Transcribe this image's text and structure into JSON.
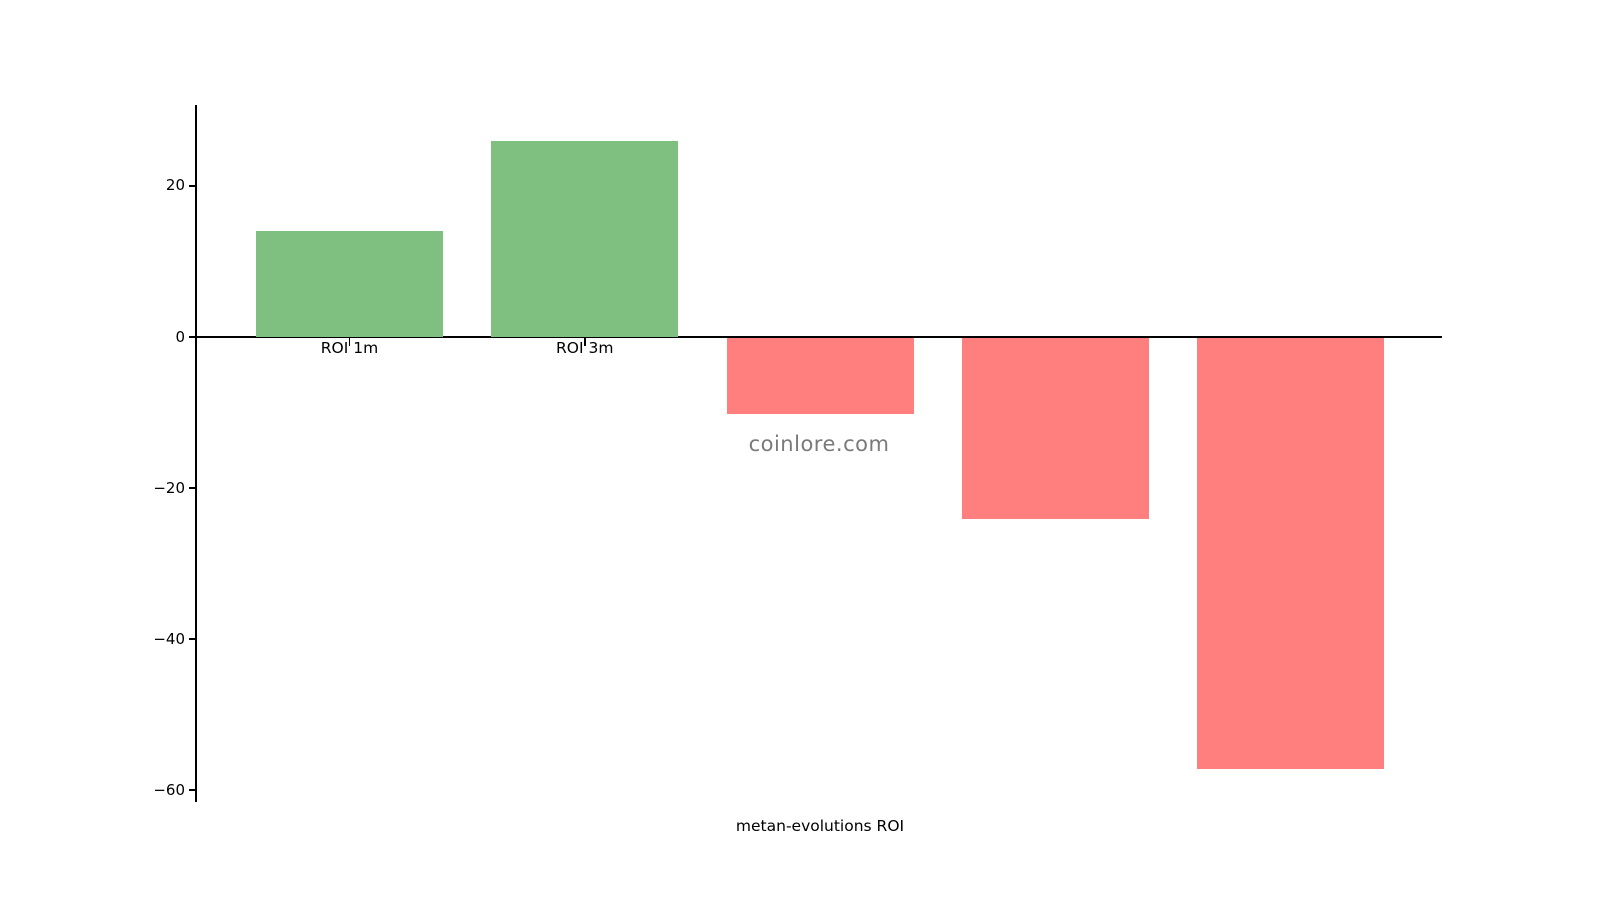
{
  "watermark": {
    "text": "coinlore.com",
    "color": "#7a7a7a"
  },
  "chart_data": {
    "type": "bar",
    "title": "",
    "xlabel": "metan-evolutions ROI",
    "ylabel": "",
    "categories": [
      "ROI 1m",
      "ROI 3m",
      "",
      "",
      ""
    ],
    "values": [
      14,
      26,
      -10,
      -24,
      -57
    ],
    "yticks": [
      {
        "value": 20,
        "label": "20"
      },
      {
        "value": 0,
        "label": "0"
      },
      {
        "value": -20,
        "label": "−20"
      },
      {
        "value": -40,
        "label": "−40"
      },
      {
        "value": -60,
        "label": "−60"
      }
    ],
    "ylim": [
      -61.6,
      30.7
    ],
    "grid": false,
    "legend": "none",
    "colors": {
      "positive": "#7fbf7f",
      "negative": "#ff7f7f",
      "axis": "#000000"
    }
  }
}
